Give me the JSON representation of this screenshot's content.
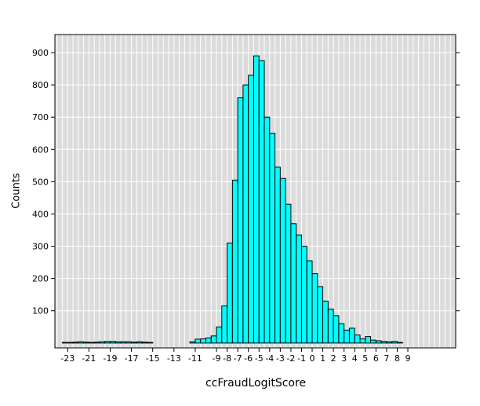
{
  "figure": {
    "background": "#FFFFFF",
    "panel_background": "#DBDBDB",
    "grid_color": "#FFFFFF",
    "bar_fill": "#00FFFF",
    "bar_stroke": "#000000",
    "axis_color": "#000000",
    "text_color": "#000000"
  },
  "chart_data": {
    "type": "bar",
    "chart_kind": "histogram",
    "title": "",
    "xlabel": "ccFraudLogitScore",
    "ylabel": "Counts",
    "bin_width": 0.5,
    "xlim": [
      -24.2,
      13.5
    ],
    "ylim": [
      -15,
      956
    ],
    "x_ticks": [
      -23,
      -21,
      -19,
      -17,
      -15,
      -13,
      -11,
      -9,
      -8,
      -7,
      -6,
      -5,
      -4,
      -3,
      -2,
      -1,
      0,
      1,
      2,
      3,
      4,
      5,
      6,
      7,
      8,
      9
    ],
    "y_ticks": [
      100,
      200,
      300,
      400,
      500,
      600,
      700,
      800,
      900
    ],
    "grid": "on",
    "legend": "none",
    "peak_count": 890,
    "bins": [
      [
        -23.5,
        2
      ],
      [
        -23.0,
        2
      ],
      [
        -22.5,
        3
      ],
      [
        -22.0,
        4
      ],
      [
        -21.5,
        3
      ],
      [
        -21.0,
        2
      ],
      [
        -20.5,
        3
      ],
      [
        -20.0,
        4
      ],
      [
        -19.5,
        5
      ],
      [
        -19.0,
        5
      ],
      [
        -18.5,
        4
      ],
      [
        -18.0,
        4
      ],
      [
        -17.5,
        4
      ],
      [
        -17.0,
        3
      ],
      [
        -16.5,
        4
      ],
      [
        -16.0,
        3
      ],
      [
        -15.5,
        2
      ],
      [
        -11.5,
        4
      ],
      [
        -11.0,
        12
      ],
      [
        -10.5,
        13
      ],
      [
        -10.0,
        16
      ],
      [
        -9.5,
        22
      ],
      [
        -9.0,
        50
      ],
      [
        -8.5,
        115
      ],
      [
        -8.0,
        310
      ],
      [
        -7.5,
        505
      ],
      [
        -7.0,
        760
      ],
      [
        -6.5,
        800
      ],
      [
        -6.0,
        830
      ],
      [
        -5.5,
        890
      ],
      [
        -5.0,
        875
      ],
      [
        -4.5,
        700
      ],
      [
        -4.0,
        650
      ],
      [
        -3.5,
        545
      ],
      [
        -3.0,
        510
      ],
      [
        -2.5,
        430
      ],
      [
        -2.0,
        370
      ],
      [
        -1.5,
        335
      ],
      [
        -1.0,
        300
      ],
      [
        -0.5,
        255
      ],
      [
        0.0,
        215
      ],
      [
        0.5,
        175
      ],
      [
        1.0,
        130
      ],
      [
        1.5,
        105
      ],
      [
        2.0,
        85
      ],
      [
        2.5,
        60
      ],
      [
        3.0,
        40
      ],
      [
        3.5,
        46
      ],
      [
        4.0,
        25
      ],
      [
        4.5,
        13
      ],
      [
        5.0,
        20
      ],
      [
        5.5,
        9
      ],
      [
        6.0,
        7
      ],
      [
        6.5,
        5
      ],
      [
        7.0,
        4
      ],
      [
        7.5,
        5
      ],
      [
        8.0,
        2
      ]
    ]
  }
}
